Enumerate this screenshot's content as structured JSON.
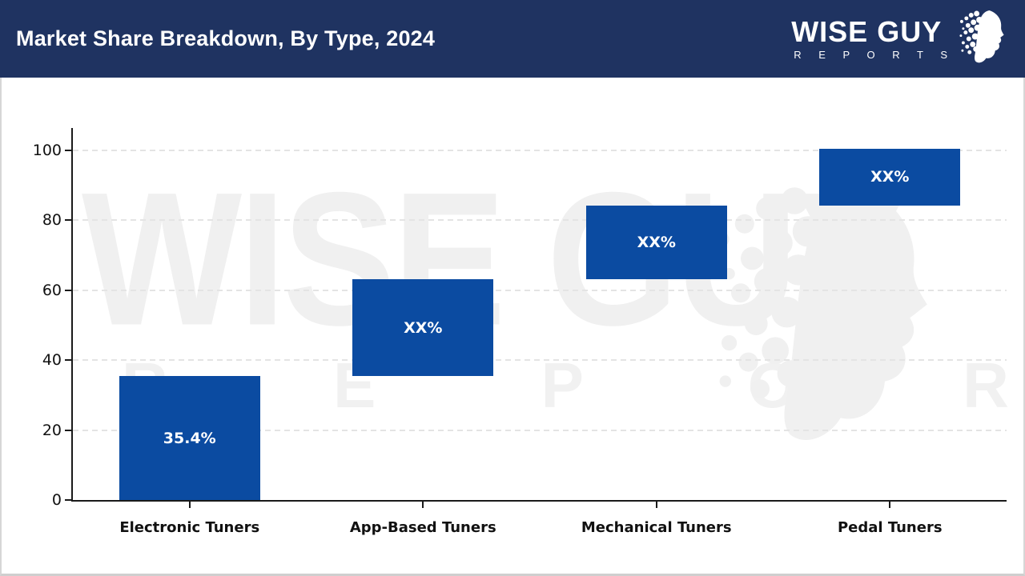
{
  "header": {
    "title": "Market Share Breakdown, By Type, 2024",
    "background": "#1f3361",
    "logo": {
      "line1": "WISE GUY",
      "line2": "R E P O R T S"
    }
  },
  "watermark": {
    "line1": "WISE GUY",
    "line2": "R E P O R T S"
  },
  "chart_data": {
    "type": "bar",
    "subtype": "waterfall-floating-bars",
    "title": "Market Share Breakdown, By Type, 2024",
    "categories": [
      "Electronic Tuners",
      "App-Based Tuners",
      "Mechanical Tuners",
      "Pedal Tuners"
    ],
    "segments": [
      {
        "category": "Electronic Tuners",
        "label": "35.4%",
        "start": 0,
        "end": 35.4
      },
      {
        "category": "App-Based Tuners",
        "label": "XX%",
        "start": 35.4,
        "end": 63.2
      },
      {
        "category": "Mechanical Tuners",
        "label": "XX%",
        "start": 63.2,
        "end": 84.3
      },
      {
        "category": "Pedal Tuners",
        "label": "XX%",
        "start": 84.3,
        "end": 100.5
      }
    ],
    "yticks": [
      0,
      20,
      40,
      60,
      80,
      100
    ],
    "ylim": [
      0,
      106.4
    ],
    "xlabel": "",
    "ylabel": "",
    "grid": "dashed-horizontal",
    "legend": "none",
    "bar_color": "#0b4ba1",
    "bar_label_color": "#ffffff",
    "axis_color": "#1a1a1a",
    "tick_label_color": "#111111"
  },
  "colors": {
    "header_bg": "#1f3361",
    "page_bg": "#ffffff",
    "watermark": "#f0f0f0",
    "border": "#d6d6d6",
    "gridline": "#e4e4e4"
  }
}
